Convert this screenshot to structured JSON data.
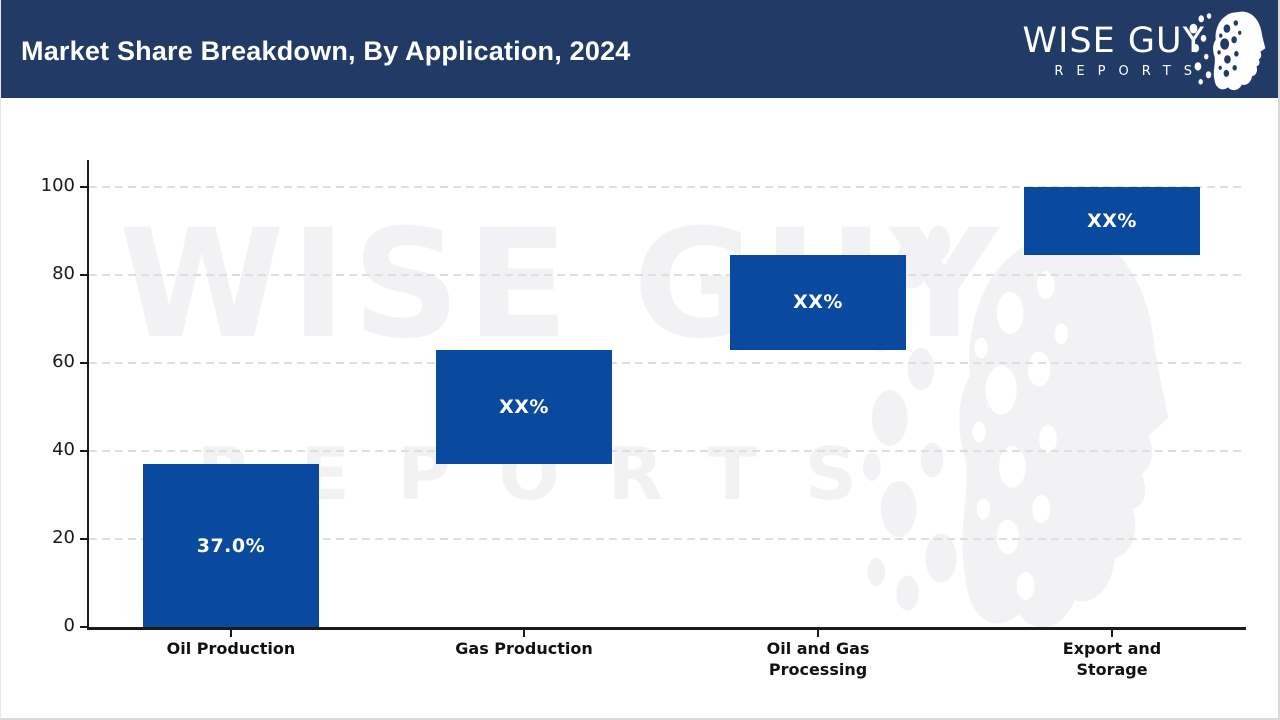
{
  "header": {
    "title": "Market Share Breakdown, By Application, 2024",
    "logo": {
      "wordmark": "WISE GUY",
      "subtitle": "REPORTS"
    },
    "background": "#213a66"
  },
  "watermark": {
    "line1": "WISE GUY",
    "line2": "REPORTS"
  },
  "chart_data": {
    "type": "bar",
    "subtype": "waterfall-floating-bars",
    "title": "Market Share Breakdown, By Application, 2024",
    "categories": [
      "Oil Production",
      "Gas Production",
      "Oil and Gas Processing",
      "Export and Storage"
    ],
    "segments": [
      {
        "category": "Oil Production",
        "start": 0,
        "end": 37,
        "label": "37.0%"
      },
      {
        "category": "Gas Production",
        "start": 37,
        "end": 63,
        "label": "XX%"
      },
      {
        "category": "Oil and Gas Processing",
        "start": 63,
        "end": 84.5,
        "label": "XX%"
      },
      {
        "category": "Export and Storage",
        "start": 84.5,
        "end": 100,
        "label": "XX%"
      }
    ],
    "xlabel": "",
    "ylabel": "",
    "ylim": [
      0,
      100
    ],
    "yticks": [
      0,
      20,
      40,
      60,
      80,
      100
    ],
    "grid": "horizontal dashed",
    "legend": "none",
    "bar_color": "#0a4a9e",
    "bar_label_color": "#ffffff"
  },
  "colors": {
    "header_bg": "#213a66",
    "bar_blue": "#0a4a9e",
    "watermark_gray": "#f2f2f4",
    "grid_gray": "#dedede",
    "axis_black": "#1a1a1a",
    "edge_border": "#d9d9d9"
  }
}
